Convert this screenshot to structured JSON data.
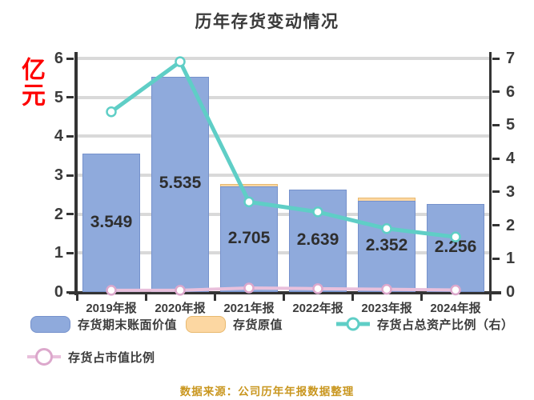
{
  "title": "历年存货变动情况",
  "unit_label": "亿元",
  "caption": "数据来源：公司历年年报数据整理",
  "colors": {
    "bar_fill": "#8faadc",
    "bar_border": "#7591cc",
    "orange_fill": "#fcd7a2",
    "orange_border": "#e8b96f",
    "teal_line": "#5fcec6",
    "pink_line": "#e9c0dc",
    "pink_ring": "#dca8cc",
    "grid": "#d9d9d9",
    "axis": "#343434",
    "text": "#3c3c3c",
    "unit_red": "#fe0000",
    "caption_gold": "#c9961e"
  },
  "chart_data": {
    "type": "bar",
    "subtype": "bar-line-combo",
    "title": "历年存货变动情况",
    "categories": [
      "2019年报",
      "2020年报",
      "2021年报",
      "2022年报",
      "2023年报",
      "2024年报"
    ],
    "series": [
      {
        "name": "存货期末账面价值",
        "type": "bar",
        "axis": "left",
        "values": [
          3.549,
          5.535,
          2.705,
          2.639,
          2.352,
          2.256
        ],
        "labels": [
          "3.549",
          "5.535",
          "2.705",
          "2.639",
          "2.352",
          "2.256"
        ]
      },
      {
        "name": "存货原值",
        "type": "bar",
        "axis": "left",
        "values": [
          null,
          null,
          2.77,
          null,
          2.42,
          null
        ]
      },
      {
        "name": "存货占总资产比例（右）",
        "type": "line",
        "axis": "right",
        "values": [
          5.4,
          6.9,
          2.7,
          2.4,
          1.9,
          1.65
        ]
      },
      {
        "name": "存货占市值比例",
        "type": "line",
        "axis": "right",
        "values": [
          0.05,
          0.05,
          0.12,
          0.1,
          0.08,
          0.06
        ]
      }
    ],
    "left_axis": {
      "min": 0,
      "max": 6,
      "ticks": [
        0,
        1,
        2,
        3,
        4,
        5,
        6
      ],
      "unit": "亿元"
    },
    "right_axis": {
      "min": 0,
      "max": 7,
      "ticks": [
        0,
        1,
        2,
        3,
        4,
        5,
        6,
        7
      ]
    },
    "grid": true,
    "legend_position": "bottom"
  }
}
